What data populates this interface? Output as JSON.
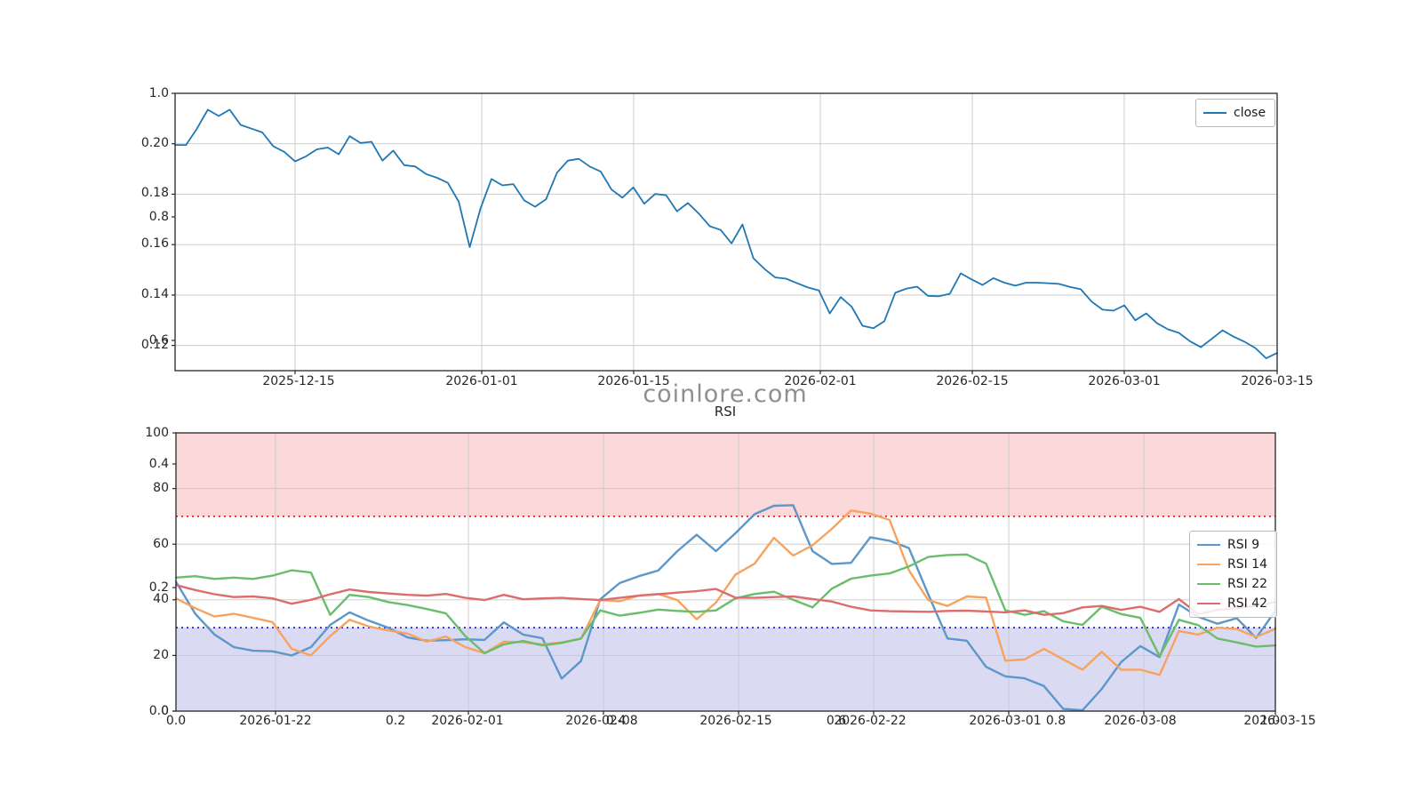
{
  "watermark": "coinlore.com",
  "colors": {
    "close": "#1f77b4",
    "rsi9": "#5d97c9",
    "rsi14": "#f7a35f",
    "rsi22": "#69bd6b",
    "rsi42": "#dc6d6d",
    "overbought_band": "#fbd9da",
    "oversold_band": "#dbdaf3",
    "overbought_line": "#dd2222",
    "oversold_line": "#2424cf",
    "grid": "#c8c8c8",
    "axis": "#262626",
    "watermark": "#8f8f8f"
  },
  "chart_data": [
    {
      "type": "line",
      "title": "",
      "legend_entries": [
        "close"
      ],
      "x_ticks": [
        "2025-12-15",
        "2026-01-01",
        "2026-01-15",
        "2026-02-01",
        "2026-02-15",
        "2026-03-01",
        "2026-03-15"
      ],
      "y_ticks": [
        "0.20",
        "0.18",
        "0.16",
        "0.14",
        "0.12"
      ],
      "y_ticks_overlay": [
        "1.0",
        "0.8",
        "0.6"
      ],
      "ylim": [
        0.11,
        0.22
      ],
      "grid": true,
      "legend_position": "upper right",
      "series": [
        {
          "name": "close",
          "values": [
            0.1995,
            0.1995,
            0.206,
            0.2135,
            0.211,
            0.2135,
            0.2075,
            0.206,
            0.2045,
            0.199,
            0.1968,
            0.193,
            0.195,
            0.1978,
            0.1985,
            0.1958,
            0.203,
            0.2003,
            0.2008,
            0.1933,
            0.1973,
            0.1915,
            0.191,
            0.188,
            0.1865,
            0.1845,
            0.177,
            0.159,
            0.1745,
            0.186,
            0.1835,
            0.184,
            0.1775,
            0.175,
            0.178,
            0.1885,
            0.1933,
            0.194,
            0.191,
            0.189,
            0.1818,
            0.1786,
            0.1827,
            0.1762,
            0.1801,
            0.1796,
            0.1732,
            0.1765,
            0.1723,
            0.1673,
            0.1658,
            0.1605,
            0.168,
            0.1546,
            0.1504,
            0.147,
            0.1465,
            0.1447,
            0.143,
            0.1418,
            0.1327,
            0.1392,
            0.1354,
            0.1278,
            0.1268,
            0.1296,
            0.1409,
            0.1425,
            0.1433,
            0.1397,
            0.1395,
            0.1405,
            0.1486,
            0.1462,
            0.144,
            0.1467,
            0.1449,
            0.1437,
            0.1449,
            0.1449,
            0.1447,
            0.1444,
            0.1432,
            0.1423,
            0.1374,
            0.1342,
            0.1338,
            0.1359,
            0.13,
            0.1327,
            0.1288,
            0.1264,
            0.125,
            0.1217,
            0.1193,
            0.1226,
            0.126,
            0.1235,
            0.1215,
            0.119,
            0.1149,
            0.117
          ]
        }
      ]
    },
    {
      "type": "line",
      "title": "RSI",
      "legend_entries": [
        "RSI 9",
        "RSI 14",
        "RSI 22",
        "RSI 42"
      ],
      "x_ticks": [
        "2026-01-22",
        "2026-02-01",
        "2026-02-08",
        "2026-02-15",
        "2026-02-22",
        "2026-03-01",
        "2026-03-08",
        "2026-03-15"
      ],
      "x_ticks_overlay": [
        "0.0",
        "0.2",
        "0.4",
        "0.6",
        "0.8",
        "1.0"
      ],
      "y_ticks": [
        "100",
        "80",
        "60",
        "40",
        "20",
        "0"
      ],
      "y_ticks_overlay": [
        "0.4",
        "0.2",
        "0.0"
      ],
      "ylim": [
        0,
        100
      ],
      "grid": true,
      "legend_position": "right",
      "overbought_level": 70,
      "oversold_level": 30,
      "bands": [
        {
          "from": 70,
          "to": 100
        },
        {
          "from": 0,
          "to": 30
        }
      ],
      "series": [
        {
          "name": "RSI 9",
          "values": [
            46.5,
            35.0,
            27.5,
            23.0,
            21.7,
            21.5,
            20.0,
            23.0,
            31.0,
            35.5,
            32.5,
            30.0,
            26.5,
            25.3,
            25.5,
            25.8,
            25.6,
            31.9,
            27.5,
            26.2,
            11.7,
            18.0,
            40.2,
            46.0,
            48.5,
            50.5,
            57.5,
            63.4,
            57.5,
            63.9,
            70.8,
            73.8,
            74.0,
            57.5,
            52.9,
            53.3,
            62.5,
            61.2,
            58.6,
            42.0,
            26.1,
            25.3,
            15.9,
            12.5,
            11.8,
            9.0,
            0.8,
            0.3,
            8.0,
            17.6,
            23.4,
            19.4,
            38.3,
            33.9,
            31.4,
            33.4,
            26.3,
            36.0
          ]
        },
        {
          "name": "RSI 14",
          "values": [
            40.5,
            37.0,
            34.0,
            35.0,
            33.5,
            32.0,
            22.4,
            20.0,
            27.0,
            32.8,
            30.4,
            29.0,
            27.9,
            25.0,
            26.8,
            23.0,
            20.8,
            25.0,
            24.7,
            24.0,
            24.7,
            26.0,
            39.9,
            39.5,
            41.5,
            42.1,
            39.9,
            33.0,
            39.0,
            49.0,
            53.0,
            62.3,
            55.9,
            59.6,
            65.5,
            72.1,
            71.0,
            68.7,
            50.6,
            39.9,
            37.8,
            41.2,
            40.8,
            18.1,
            18.6,
            22.4,
            18.6,
            14.9,
            21.3,
            14.9,
            14.9,
            13.0,
            28.8,
            27.5,
            30.0,
            29.5,
            26.6,
            29.6
          ]
        },
        {
          "name": "RSI 22",
          "values": [
            48.0,
            48.5,
            47.5,
            48.0,
            47.5,
            48.7,
            50.6,
            49.8,
            34.6,
            41.8,
            41.0,
            39.2,
            38.1,
            36.7,
            35.1,
            27.0,
            20.8,
            24.0,
            25.2,
            23.6,
            24.5,
            26.1,
            36.2,
            34.3,
            35.3,
            36.5,
            36.0,
            35.7,
            36.2,
            40.5,
            42.1,
            42.9,
            40.0,
            37.3,
            44.0,
            47.6,
            48.7,
            49.5,
            52.0,
            55.4,
            56.1,
            56.3,
            53.0,
            36.2,
            34.6,
            35.9,
            32.3,
            31.0,
            37.5,
            34.9,
            33.5,
            19.7,
            32.8,
            30.9,
            26.1,
            24.7,
            23.2,
            23.6
          ]
        },
        {
          "name": "RSI 42",
          "values": [
            45.3,
            43.5,
            42.0,
            41.0,
            41.2,
            40.5,
            38.6,
            40.0,
            42.0,
            43.7,
            42.8,
            42.3,
            41.8,
            41.5,
            42.1,
            40.7,
            39.9,
            41.8,
            40.2,
            40.5,
            40.7,
            40.3,
            39.9,
            40.7,
            41.5,
            42.0,
            42.6,
            43.1,
            43.9,
            40.8,
            40.7,
            41.0,
            41.2,
            40.3,
            39.4,
            37.5,
            36.2,
            35.9,
            35.8,
            35.7,
            36.0,
            36.1,
            35.8,
            35.5,
            36.2,
            34.6,
            35.2,
            37.3,
            37.8,
            36.4,
            37.5,
            35.7,
            40.3,
            34.9,
            36.4,
            37.1,
            37.8,
            39.2
          ]
        }
      ]
    }
  ]
}
